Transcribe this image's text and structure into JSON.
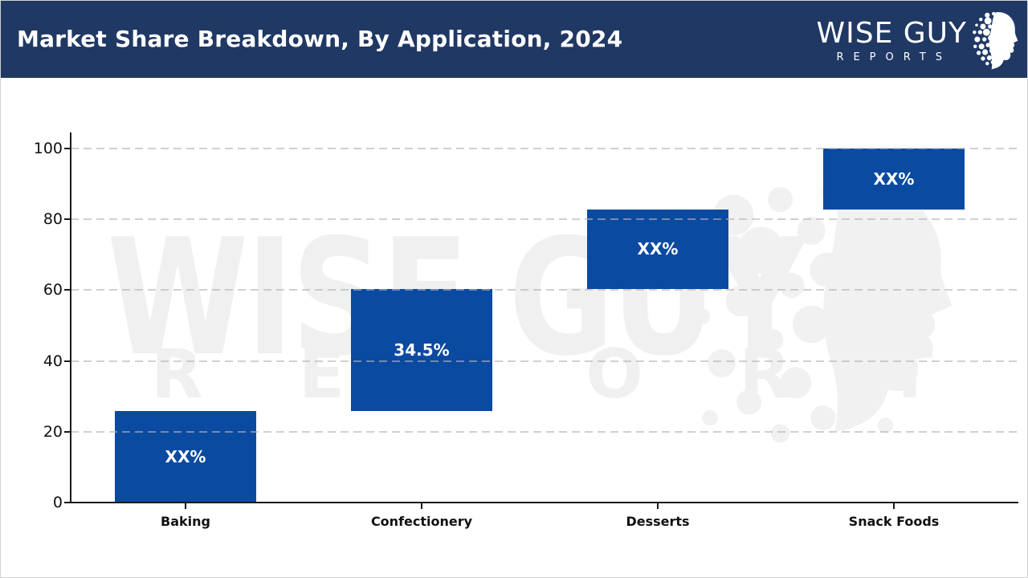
{
  "header": {
    "title": "Market Share Breakdown, By Application, 2024",
    "logo": {
      "line1": "WISE GUY",
      "line2": "REPORTS"
    }
  },
  "watermark": {
    "line1": "WISE GUY",
    "line2": "R E P O R T S"
  },
  "chart_data": {
    "type": "bar",
    "subtype": "waterfall",
    "title": "Market Share Breakdown, By Application, 2024",
    "categories": [
      "Baking",
      "Confectionery",
      "Desserts",
      "Snack Foods"
    ],
    "segments": [
      {
        "category": "Baking",
        "start": 0,
        "end": 25.8,
        "label": "XX%"
      },
      {
        "category": "Confectionery",
        "start": 25.8,
        "end": 60.3,
        "label": "34.5%"
      },
      {
        "category": "Desserts",
        "start": 60.3,
        "end": 82.8,
        "label": "XX%"
      },
      {
        "category": "Snack Foods",
        "start": 82.8,
        "end": 100,
        "label": "XX%"
      }
    ],
    "y_ticks": [
      0,
      20,
      40,
      60,
      80,
      100
    ],
    "ylim": [
      0,
      105
    ],
    "xlabel": "",
    "ylabel": "",
    "grid": "dashed-horizontal",
    "legend": "none",
    "bar_color": "#0b4aa1"
  },
  "colors": {
    "header_bg": "#203864",
    "bar": "#0b4aa1",
    "gridline": "#cccccc",
    "axis": "#1a1a1a",
    "watermark": "#f0f0f0",
    "title_text": "#ffffff"
  }
}
